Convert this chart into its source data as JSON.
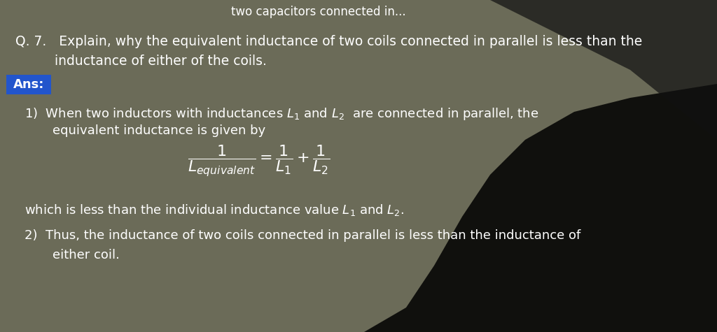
{
  "background_color": "#6b6b58",
  "shadow_color": "#000000",
  "top_text": "two capacitors connected in...",
  "question_label": "Q. 7.",
  "ans_label": "Ans:",
  "ans_bg_color": "#2255cc",
  "text_color": "#ffffff",
  "font_size_question": 13.5,
  "font_size_body": 13,
  "font_size_formula": 16,
  "font_size_top": 12,
  "figwidth": 10.24,
  "figheight": 4.75,
  "dpi": 100
}
